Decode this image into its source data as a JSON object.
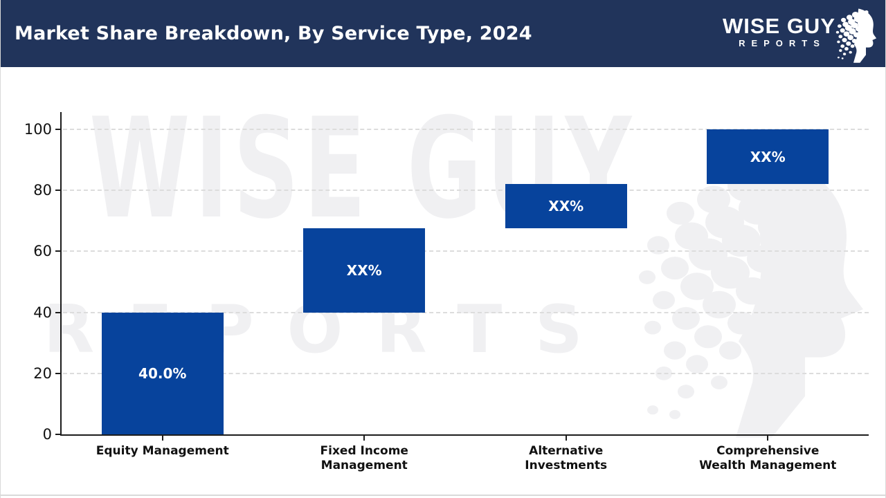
{
  "header": {
    "title": "Market Share Breakdown, By Service Type, 2024",
    "bg_color": "#21345B",
    "logo": {
      "line1": "WISE GUY",
      "line2": "REPORTS",
      "icon": "dotted-head-profile-icon"
    }
  },
  "watermark": {
    "line1": "WISE GUY",
    "line2": "REPORTS",
    "icon": "dotted-head-profile-icon",
    "color": "#F0F0F2"
  },
  "chart_data": {
    "type": "bar",
    "subtype": "waterfall",
    "title": "Market Share Breakdown, By Service Type, 2024",
    "categories": [
      "Equity Management",
      "Fixed Income\nManagement",
      "Alternative\nInvestments",
      "Comprehensive\nWealth Management"
    ],
    "bars": [
      {
        "category": "Equity Management",
        "start": 0,
        "end": 40,
        "label": "40.0%"
      },
      {
        "category": "Fixed Income Management",
        "start": 40,
        "end": 67.5,
        "label": "XX%"
      },
      {
        "category": "Alternative Investments",
        "start": 67.5,
        "end": 82,
        "label": "XX%"
      },
      {
        "category": "Comprehensive Wealth Management",
        "start": 82,
        "end": 100,
        "label": "XX%"
      }
    ],
    "ylim": [
      0,
      100
    ],
    "yticks": [
      0,
      20,
      40,
      60,
      80,
      100
    ],
    "xlabel": "",
    "ylabel": "",
    "grid": "horizontal-dashed",
    "legend": "none",
    "bar_color": "#07439C",
    "bar_label_color": "#FFFFFF",
    "gridline_color": "#DCDCDC",
    "axis_color": "#1C1C1C"
  }
}
